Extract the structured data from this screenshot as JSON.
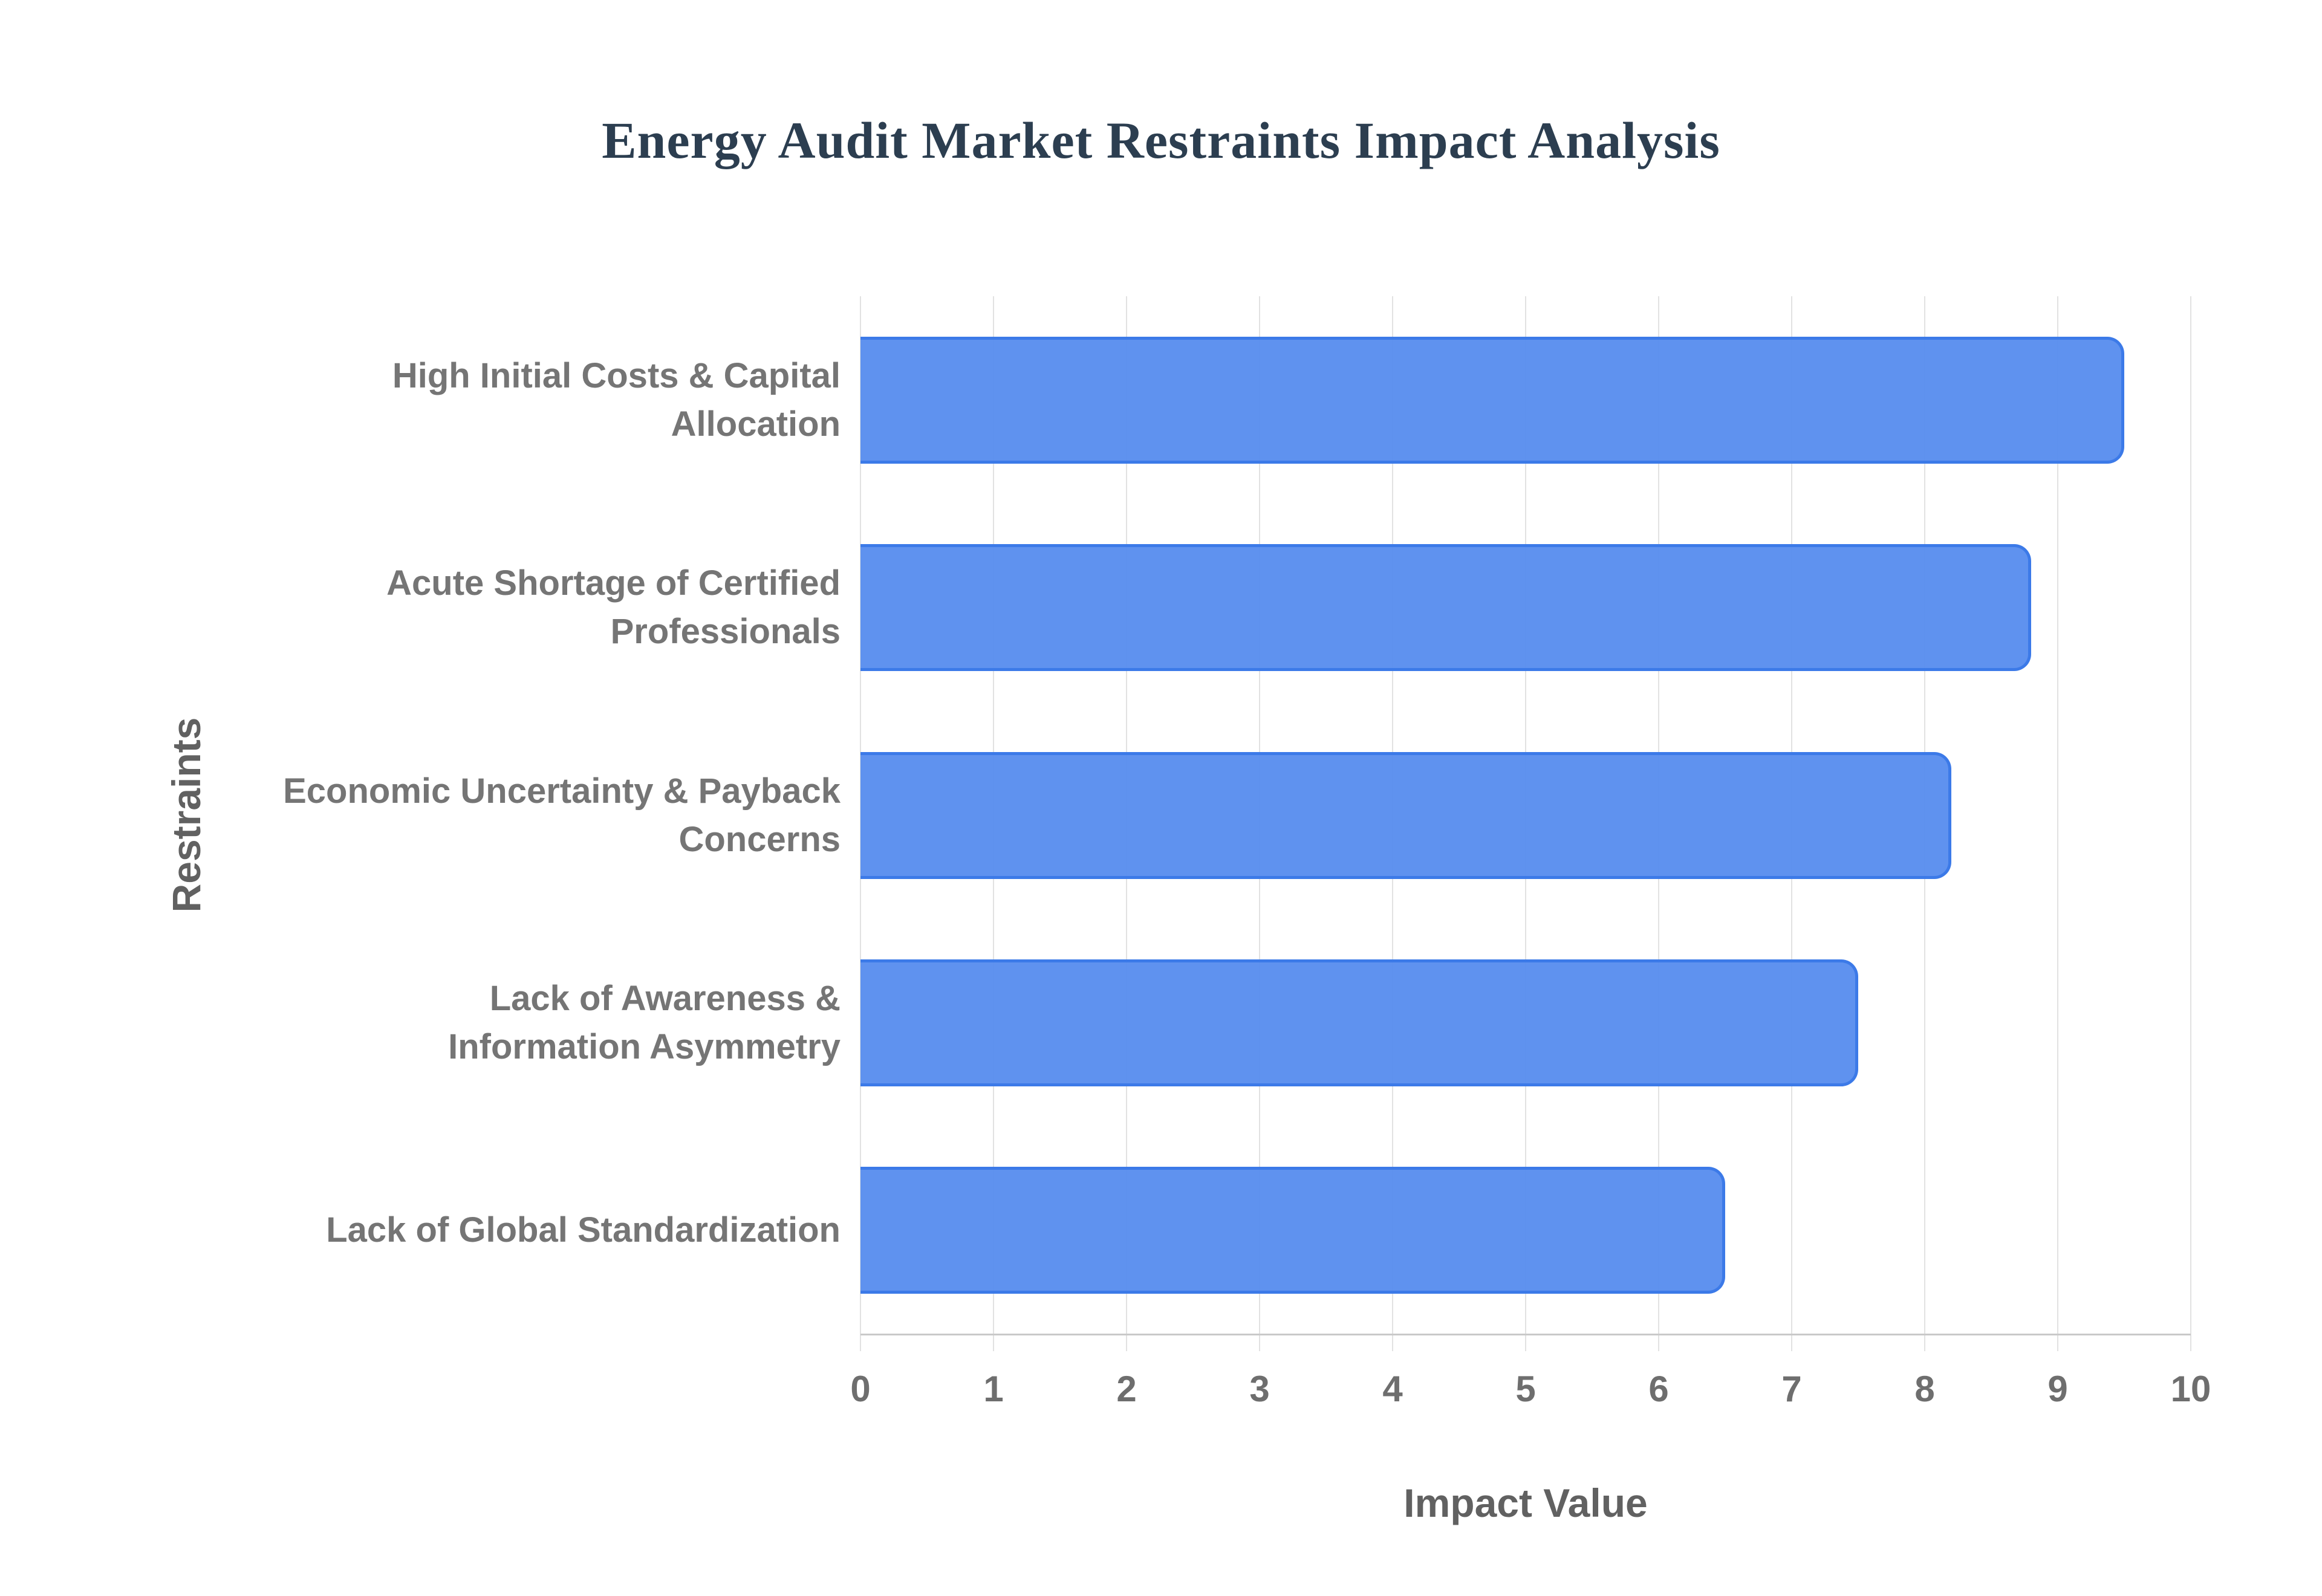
{
  "page": {
    "background": "#ffffff"
  },
  "chart_data": {
    "type": "bar",
    "orientation": "horizontal",
    "title": "Energy Audit Market Restraints Impact Analysis",
    "xlabel": "Impact Value",
    "ylabel": "Restraints",
    "categories": [
      "High Initial Costs & Capital Allocation",
      "Acute Shortage of Certified Professionals",
      "Economic Uncertainty & Payback Concerns",
      "Lack of Awareness & Information Asymmetry",
      "Lack of Global Standardization"
    ],
    "category_lines": [
      [
        "High Initial Costs & Capital",
        "Allocation"
      ],
      [
        "Acute Shortage of Certified",
        "Professionals"
      ],
      [
        "Economic Uncertainty & Payback",
        "Concerns"
      ],
      [
        "Lack of Awareness &",
        "Information Asymmetry"
      ],
      [
        "Lack of Global Standardization"
      ]
    ],
    "values": [
      9.5,
      8.8,
      8.2,
      7.5,
      6.5
    ],
    "xlim": [
      0,
      10
    ],
    "xticks": [
      "0",
      "1",
      "2",
      "3",
      "4",
      "5",
      "6",
      "7",
      "8",
      "9",
      "10"
    ],
    "grid": "vertical",
    "legend": "none",
    "colors": {
      "background": "#ffffff",
      "bar_fill": "rgba(86,140,238,0.95)",
      "bar_border": "#3c7ae8",
      "gridline": "#e2e2e2",
      "axis_line": "#c9c9c9",
      "tick_label": "#6e6e6e",
      "category_label": "#757575",
      "axis_title": "#616161",
      "title": "#2c3e50"
    }
  }
}
